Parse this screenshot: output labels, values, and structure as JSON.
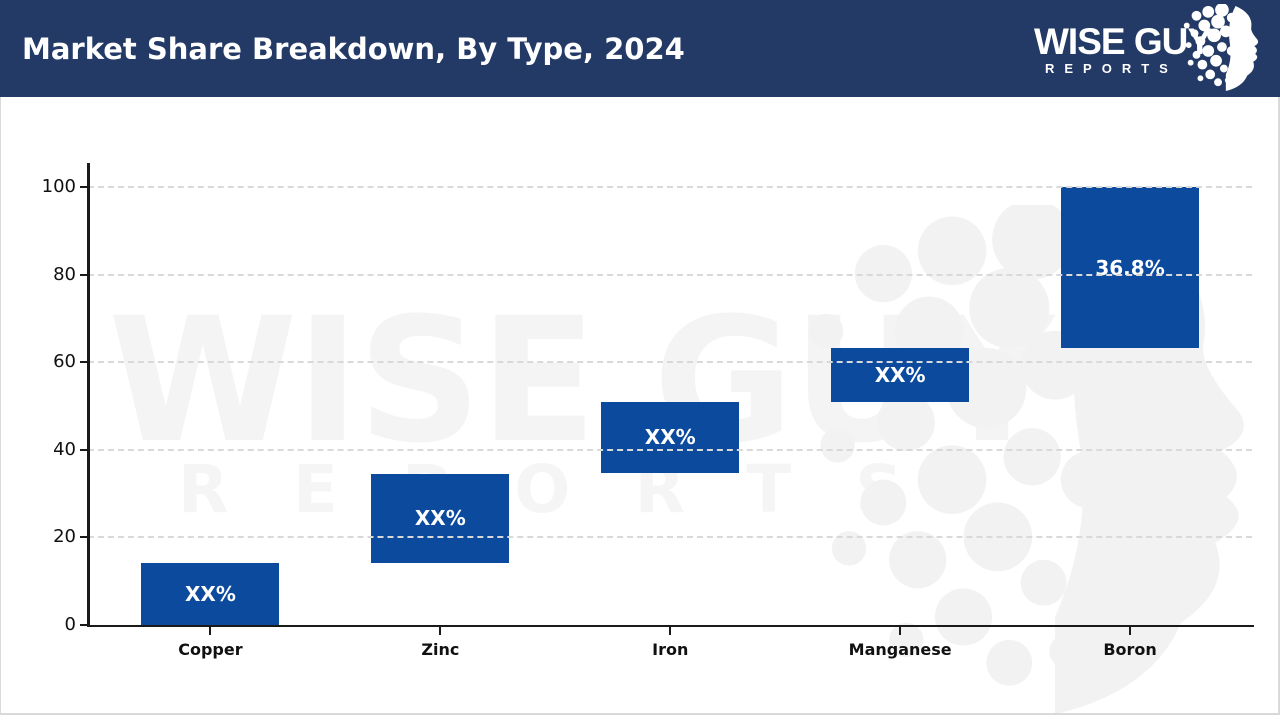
{
  "header": {
    "title": "Market Share Breakdown, By Type, 2024",
    "logo_line1": "WISE GUY",
    "logo_line2": "REPORTS"
  },
  "watermark": {
    "line1": "WISE GUY",
    "line2": "REPORTS"
  },
  "chart_data": {
    "type": "bar",
    "subtype": "waterfall-floating-bars",
    "title": "Market Share Breakdown, By Type, 2024",
    "categories": [
      "Copper",
      "Zinc",
      "Iron",
      "Manganese",
      "Boron"
    ],
    "series": [
      {
        "name": "Market share (%)",
        "segments": [
          {
            "category": "Copper",
            "start": 0,
            "end": 14.1,
            "label": "XX%"
          },
          {
            "category": "Zinc",
            "start": 14.1,
            "end": 34.4,
            "label": "XX%"
          },
          {
            "category": "Iron",
            "start": 34.6,
            "end": 50.9,
            "label": "XX%"
          },
          {
            "category": "Manganese",
            "start": 50.9,
            "end": 63.2,
            "label": "XX%"
          },
          {
            "category": "Boron",
            "start": 63.2,
            "end": 100,
            "label": "36.8%"
          }
        ]
      }
    ],
    "xlabel": "",
    "ylabel": "",
    "ylim": [
      0,
      100
    ],
    "yticks": [
      0,
      20,
      40,
      60,
      80,
      100
    ],
    "grid": "horizontal-dashed",
    "legend_position": "none",
    "bar_color": "#0c4a9e",
    "bar_label_color": "#ffffff",
    "axis_color": "#1a1a1a",
    "grid_color": "#d9d9d9",
    "header_bg_color": "#233a66"
  }
}
